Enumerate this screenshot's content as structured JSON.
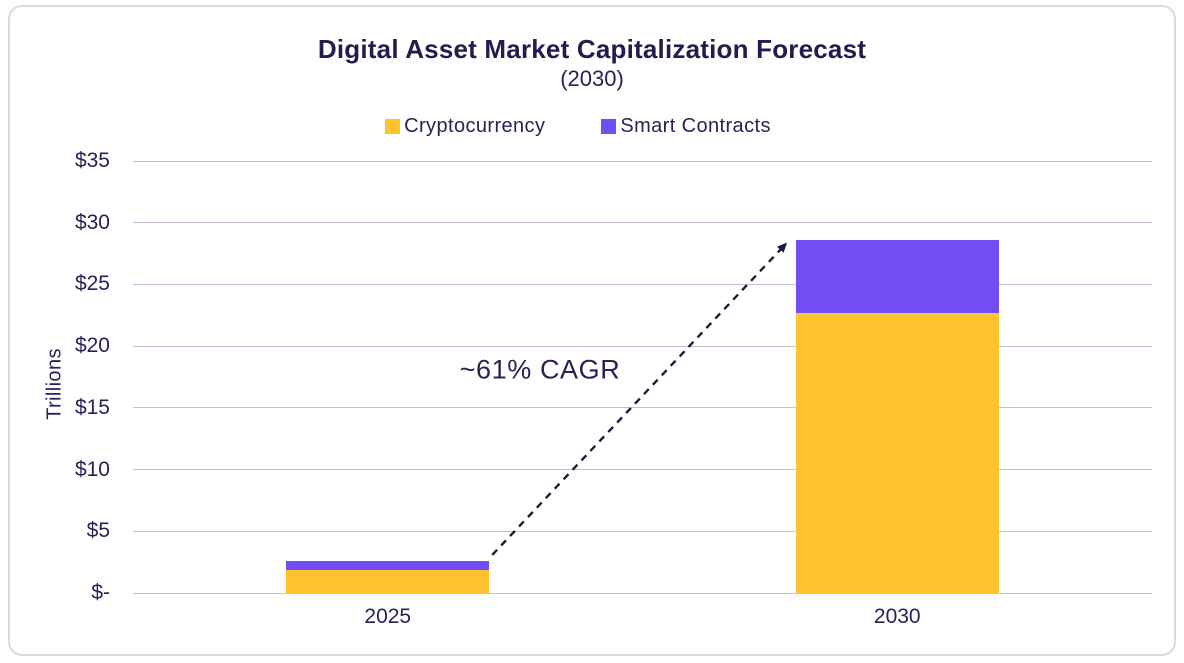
{
  "chart_data": {
    "type": "bar",
    "stacked": true,
    "title": "Digital Asset Market Capitalization Forecast",
    "subtitle": "(2030)",
    "xlabel": "",
    "ylabel": "Trillions",
    "categories": [
      "2025",
      "2030"
    ],
    "series": [
      {
        "name": "Cryptocurrency",
        "color": "#FFC32D",
        "values": [
          1.9,
          22.7
        ]
      },
      {
        "name": "Smart Contracts",
        "color": "#744EF5",
        "values": [
          0.7,
          5.9
        ]
      }
    ],
    "totals": [
      2.6,
      28.6
    ],
    "ylim": [
      0,
      35
    ],
    "yticks": [
      0,
      5,
      10,
      15,
      20,
      25,
      30,
      35
    ],
    "yticklabels": [
      "$-",
      "$5",
      "$10",
      "$15",
      "$20",
      "$25",
      "$30",
      "$35"
    ],
    "grid": true,
    "legend_position": "top",
    "annotation": {
      "text": "~61% CAGR",
      "style": "dashed-arrow",
      "from_category": "2025",
      "to_category": "2030"
    }
  },
  "colors": {
    "text": "#262356",
    "title": "#201d4f",
    "grid": "#bfc1e0",
    "card_border": "#d9d9e3",
    "arrow": "#1c1a3e",
    "background": "#ffffff"
  }
}
